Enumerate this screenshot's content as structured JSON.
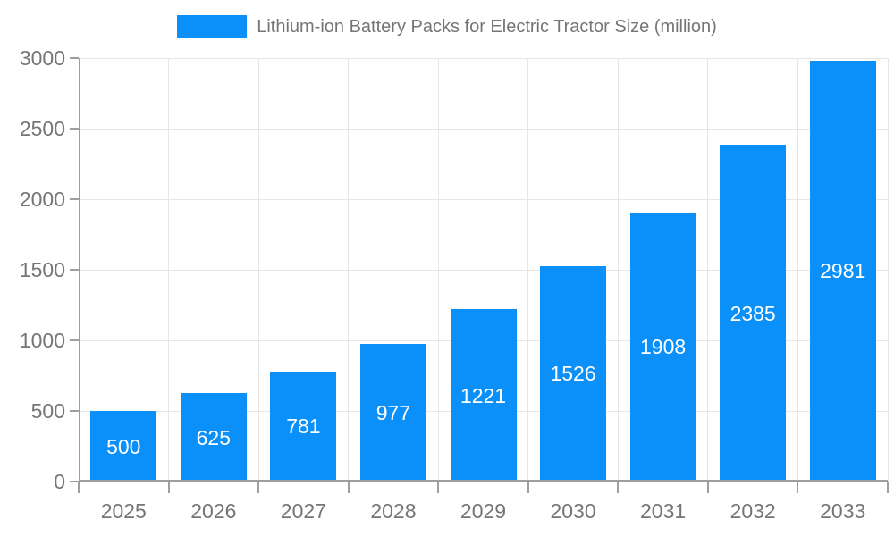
{
  "legend": {
    "label": "Lithium-ion Battery Packs for Electric Tractor Size (million)"
  },
  "chart_data": {
    "type": "bar",
    "title": "Lithium-ion Battery Packs for Electric Tractor Size (million)",
    "categories": [
      "2025",
      "2026",
      "2027",
      "2028",
      "2029",
      "2030",
      "2031",
      "2032",
      "2033"
    ],
    "values": [
      500,
      625,
      781,
      977,
      1221,
      1526,
      1908,
      2385,
      2981
    ],
    "xlabel": "",
    "ylabel": "",
    "ylim": [
      0,
      3000
    ],
    "yticks": [
      0,
      500,
      1000,
      1500,
      2000,
      2500,
      3000
    ],
    "grid": true,
    "legend_position": "top",
    "bar_value_labels_shown": true,
    "colors": {
      "bar": "#0a90f8",
      "bar_label": "#ffffff",
      "grid": "#e6e6e6",
      "axis": "#9e9e9e",
      "tick_text": "#757575",
      "background": "#ffffff"
    }
  }
}
